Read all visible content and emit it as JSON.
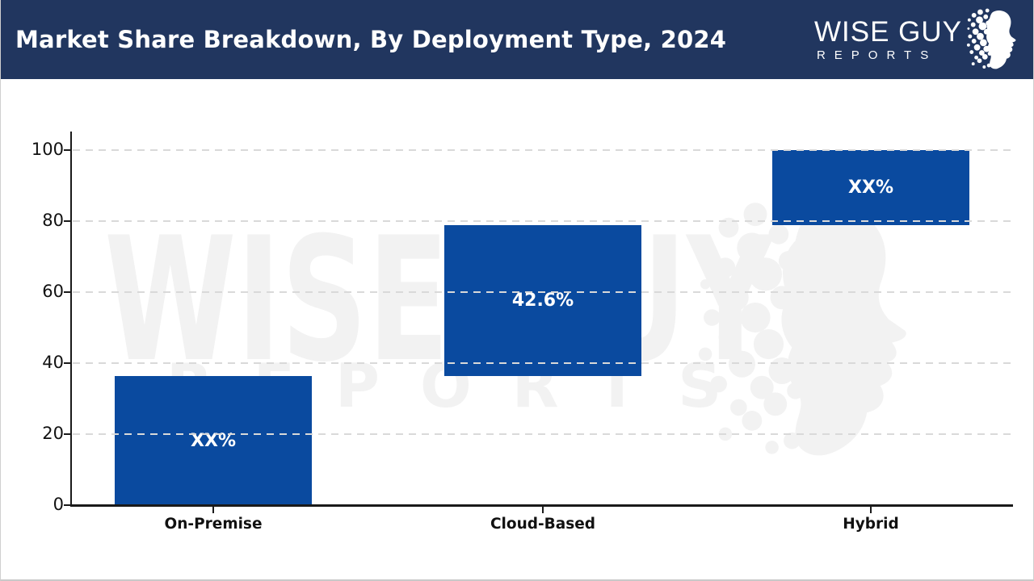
{
  "header": {
    "title": "Market Share Breakdown, By Deployment Type, 2024",
    "logo": {
      "name": "WISE GUY REPORTS",
      "line1": "WISE GUY",
      "line2": "REPORTS"
    }
  },
  "watermark": {
    "line1": "WISE GUY",
    "line2": "REPORTS"
  },
  "chart_data": {
    "type": "bar",
    "subtype": "floating-waterfall",
    "title": "Market Share Breakdown, By Deployment Type, 2024",
    "categories": [
      "On-Premise",
      "Cloud-Based",
      "Hybrid"
    ],
    "segments": [
      {
        "category": "On-Premise",
        "start": 0,
        "end": 36.3,
        "value": 36.3,
        "label": "XX%"
      },
      {
        "category": "Cloud-Based",
        "start": 36.3,
        "end": 78.9,
        "value": 42.6,
        "label": "42.6%"
      },
      {
        "category": "Hybrid",
        "start": 78.9,
        "end": 100,
        "value": 21.1,
        "label": "XX%"
      }
    ],
    "xlabel": "",
    "ylabel": "",
    "yticks": [
      0,
      20,
      40,
      60,
      80,
      100
    ],
    "ylim": [
      0,
      105
    ],
    "grid": {
      "horizontal": true,
      "style": "dashed",
      "color": "#d9d9d9",
      "drawn_over_bars": true
    },
    "legend": "none",
    "bar_color": "#0a4a9f",
    "bar_label_color": "#ffffff"
  },
  "colors": {
    "header_bg": "#21365f",
    "bar": "#0a4a9f",
    "watermark": "#f2f2f2",
    "grid": "#d9d9d9",
    "axis": "#1a1a1a",
    "title_text": "#ffffff"
  }
}
